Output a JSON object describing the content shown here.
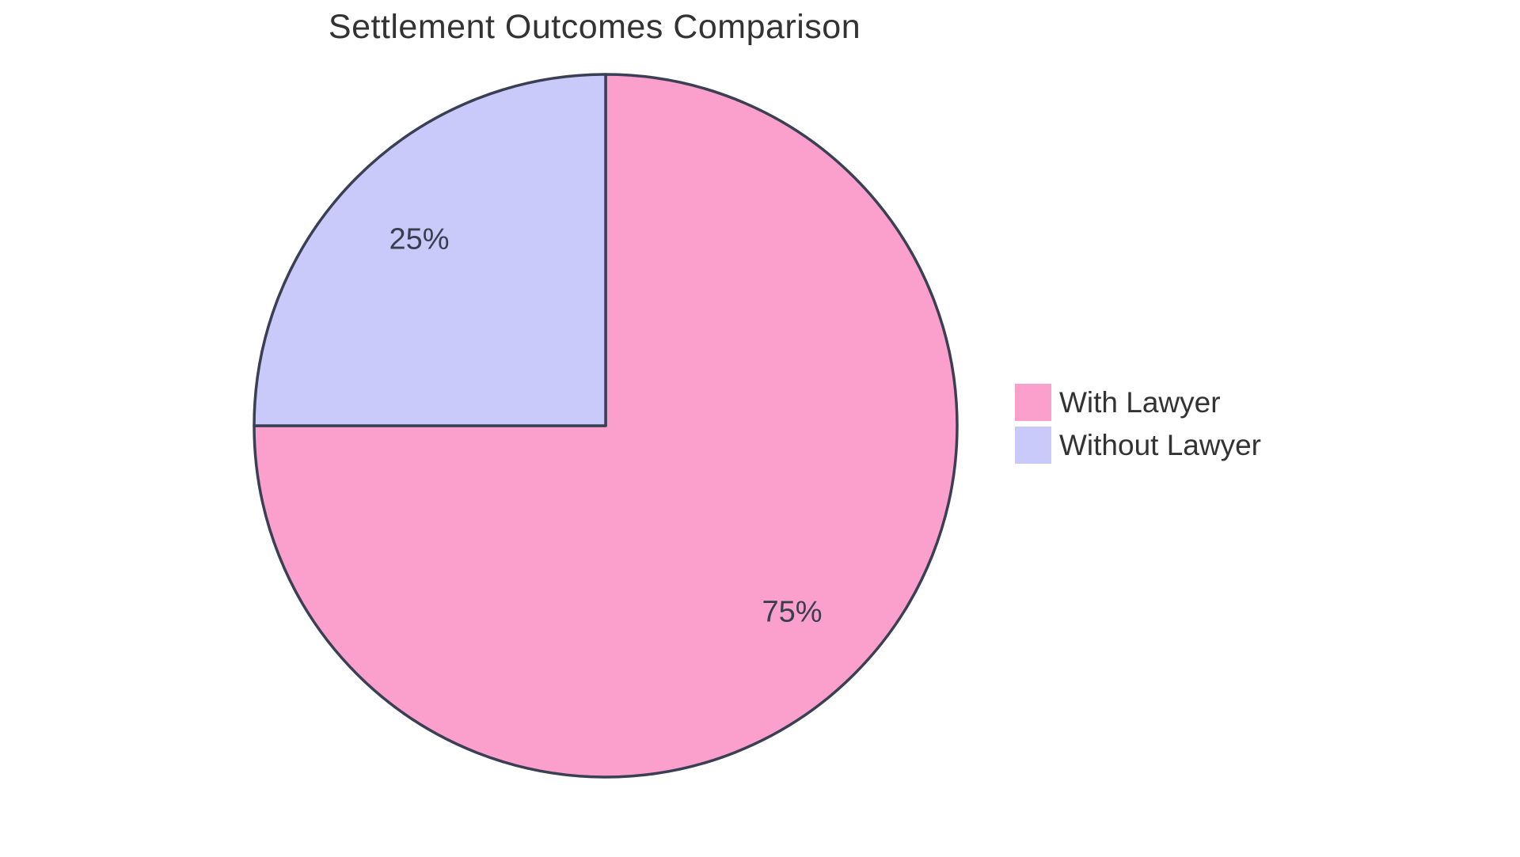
{
  "chart_data": {
    "type": "pie",
    "title": "Settlement Outcomes Comparison",
    "labels": [
      "With Lawyer",
      "Without Lawyer"
    ],
    "values": [
      75,
      25
    ],
    "slice_labels": [
      "75%",
      "25%"
    ],
    "colors": [
      "#FB9FCC",
      "#C9C9FA"
    ],
    "stroke_color": "#3B3F54",
    "stroke_width": 3.5,
    "start_angle_deg": -90,
    "direction": "clockwise",
    "label_radius_fraction": 0.75,
    "label_color": "#3A3E4E",
    "legend_position": "right",
    "legend": [
      {
        "label": "With Lawyer",
        "color": "#FB9FCC"
      },
      {
        "label": "Without Lawyer",
        "color": "#C9C9FA"
      }
    ]
  }
}
